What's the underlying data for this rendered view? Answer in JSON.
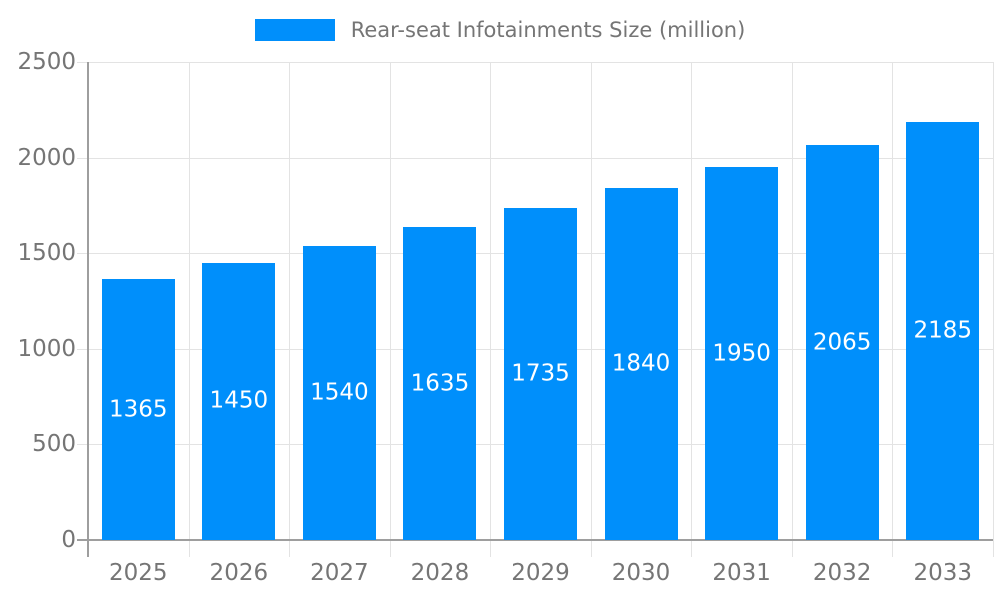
{
  "chart_data": {
    "type": "bar",
    "title": "Rear-seat Infotainments Size (million)",
    "legend": {
      "label": "Rear-seat Infotainments Size (million)",
      "position": "top"
    },
    "categories": [
      "2025",
      "2026",
      "2027",
      "2028",
      "2029",
      "2030",
      "2031",
      "2032",
      "2033"
    ],
    "values": [
      1365,
      1450,
      1540,
      1635,
      1735,
      1840,
      1950,
      2065,
      2185
    ],
    "xlabel": "",
    "ylabel": "",
    "ylim": [
      0,
      2500
    ],
    "yticks": [
      0,
      500,
      1000,
      1500,
      2000,
      2500
    ],
    "grid": true,
    "colors": {
      "bar": "#008FFB",
      "bar_label": "#ffffff",
      "axis_line": "#9e9e9e",
      "grid_line": "#e3e3e3",
      "tick_text": "#757575",
      "legend_text": "#757575",
      "background": "#ffffff"
    }
  }
}
